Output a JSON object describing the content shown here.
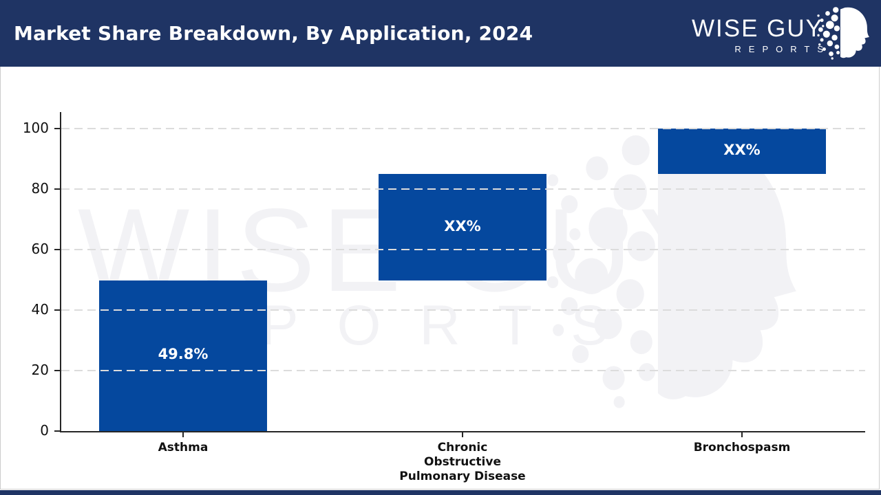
{
  "header": {
    "title": "Market Share Breakdown, By Application, 2024",
    "logo": {
      "line1": "WISE GUY",
      "line2": "REPORTS"
    }
  },
  "watermark": {
    "line1": "WISE GUY",
    "line2": "REPORTS"
  },
  "colors": {
    "header_bg": "#1f3464",
    "bar": "#05489e",
    "grid": "#dcdcdc",
    "axis": "#262626",
    "bar_label": "#ffffff",
    "tick_label": "#111111",
    "watermark": "#f2f2f5",
    "card_border": "#cccccc"
  },
  "chart_data": {
    "type": "bar",
    "subtype": "stacked-waterfall-floating-segments",
    "title": "Market Share Breakdown, By Application, 2024",
    "xlabel": "",
    "ylabel": "",
    "ylim": [
      0,
      105
    ],
    "yticks": [
      0,
      20,
      40,
      60,
      80,
      100
    ],
    "grid": "horizontal-dashed",
    "legend": "none",
    "categories": [
      "Asthma",
      "Chronic Obstructive Pulmonary Disease",
      "Bronchospasm"
    ],
    "segments": [
      {
        "category_lines": [
          "Asthma"
        ],
        "start": 0,
        "end": 49.8,
        "label": "49.8%"
      },
      {
        "category_lines": [
          "Chronic",
          "Obstructive",
          "Pulmonary Disease"
        ],
        "start": 49.8,
        "end": 84.9,
        "label": "XX%"
      },
      {
        "category_lines": [
          "Bronchospasm"
        ],
        "start": 84.9,
        "end": 100,
        "label": "XX%"
      }
    ]
  }
}
